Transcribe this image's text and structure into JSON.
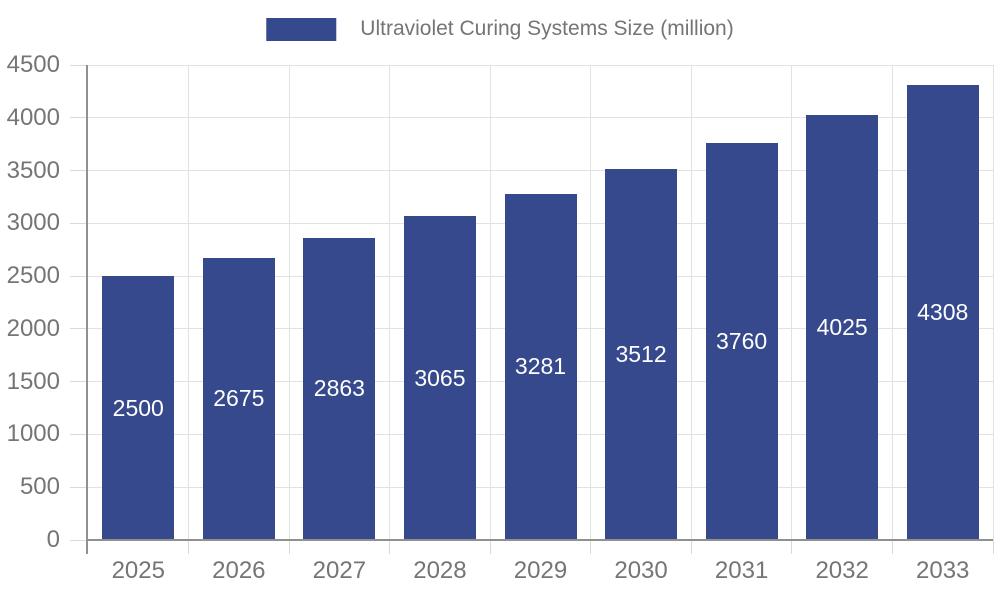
{
  "legend": {
    "label": "Ultraviolet Curing Systems Size (million)"
  },
  "chart_data": {
    "type": "bar",
    "title": "Ultraviolet Curing Systems Size (million)",
    "categories": [
      "2025",
      "2026",
      "2027",
      "2028",
      "2029",
      "2030",
      "2031",
      "2032",
      "2033"
    ],
    "series": [
      {
        "name": "Ultraviolet Curing Systems Size (million)",
        "values": [
          2500,
          2675,
          2863,
          3065,
          3281,
          3512,
          3760,
          4025,
          4308
        ]
      }
    ],
    "values": [
      2500,
      2675,
      2863,
      3065,
      3281,
      3512,
      3760,
      4025,
      4308
    ],
    "value_labels": [
      "2500",
      "2675",
      "2863",
      "3065",
      "3281",
      "3512",
      "3760",
      "4025",
      "4308"
    ],
    "xlabel": "",
    "ylabel": "",
    "ylim": [
      0,
      4500
    ],
    "ytick_step": 500,
    "ytick_labels": [
      "0",
      "500",
      "1000",
      "1500",
      "2000",
      "2500",
      "3000",
      "3500",
      "4000",
      "4500"
    ],
    "grid": true,
    "legend_position": "top",
    "colors": {
      "bar": "#36498C",
      "bar_label": "#ffffff",
      "axis_text": "#757575",
      "grid_line": "#e2e2e2",
      "tick_line": "#d9d9d9",
      "axis_line": "#909090",
      "background": "#ffffff"
    }
  }
}
